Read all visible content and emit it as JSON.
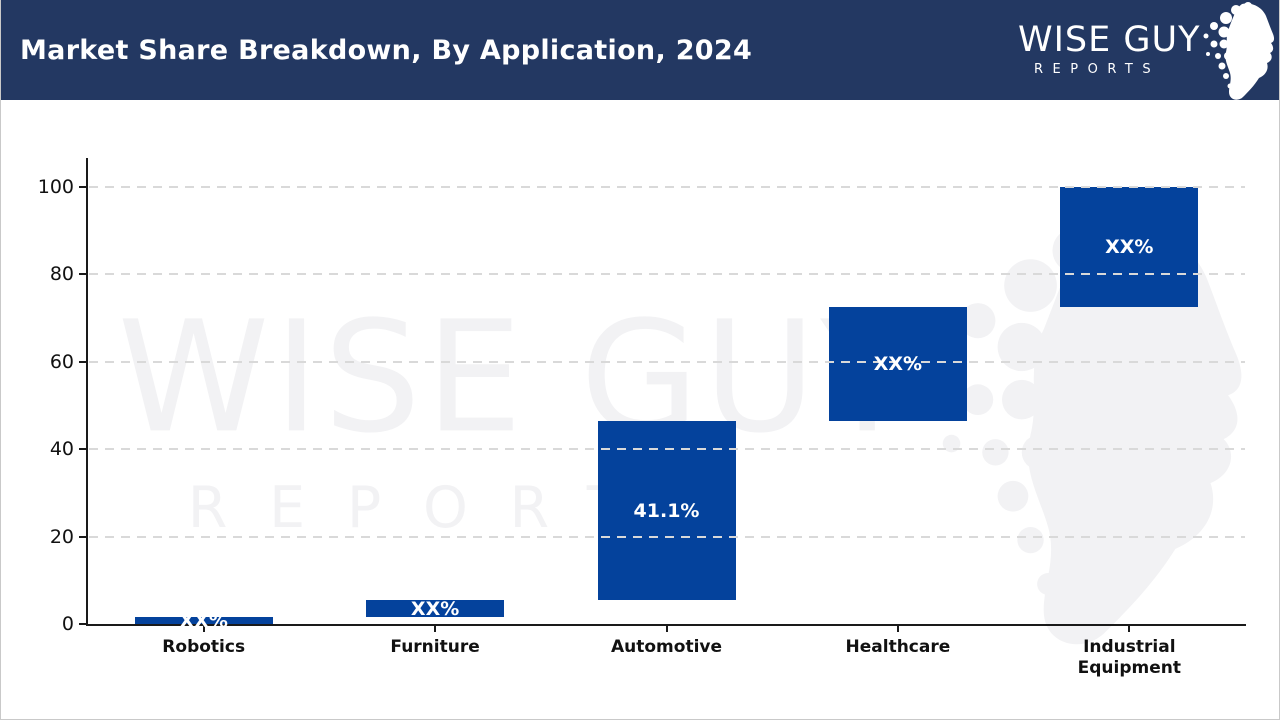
{
  "brand": {
    "name": "WISE GUY",
    "tagline": "REPORTS"
  },
  "header": {
    "title": "Market Share Breakdown, By Application, 2024"
  },
  "chart_data": {
    "type": "bar",
    "subtype": "waterfall (floating segment bars, cumulative to 100%)",
    "title": "Market Share Breakdown, By Application, 2024",
    "categories": [
      "Robotics",
      "Furniture",
      "Automotive",
      "Healthcare",
      "Industrial Equipment"
    ],
    "segments": [
      {
        "category": "Robotics",
        "start": 0,
        "end": 1.6,
        "value_label": "XX%"
      },
      {
        "category": "Furniture",
        "start": 1.6,
        "end": 5.4,
        "value_label": "XX%"
      },
      {
        "category": "Automotive",
        "start": 5.4,
        "end": 46.5,
        "value_label": "41.1%"
      },
      {
        "category": "Healthcare",
        "start": 46.5,
        "end": 72.5,
        "value_label": "XX%"
      },
      {
        "category": "Industrial Equipment",
        "start": 72.5,
        "end": 100,
        "value_label": "XX%"
      }
    ],
    "xlabel": "",
    "ylabel": "",
    "ylim": [
      0,
      100
    ],
    "yticks": [
      0,
      20,
      40,
      60,
      80,
      100
    ],
    "grid": "horizontal dashed lines drawn above bars",
    "legend": "none"
  },
  "colors": {
    "header_bg": "#233862",
    "bar_fill": "#04429C",
    "bar_label": "#FFFFFF",
    "grid_line": "#D9D9D9",
    "axis_line": "#1A1A1A",
    "tick_text": "#111111",
    "watermark": "#F2F2F4",
    "logo_text": "#FFFFFF"
  },
  "watermark": {
    "name": "WISE GUY",
    "tagline": "REPORTS"
  }
}
